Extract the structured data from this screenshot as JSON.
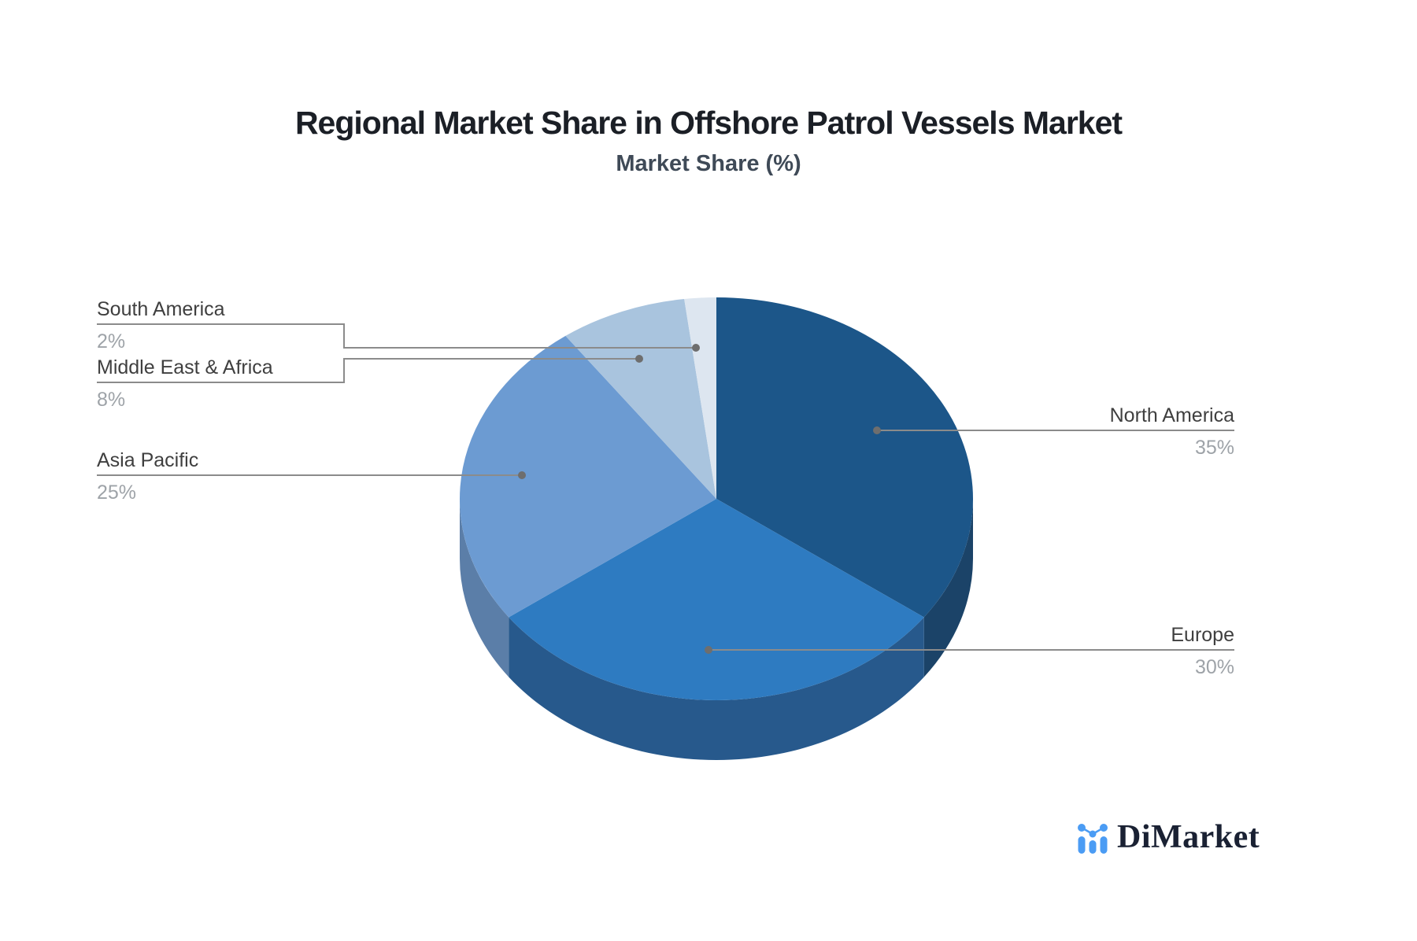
{
  "title": "Regional Market Share in Offshore Patrol Vessels Market",
  "subtitle": "Market Share (%)",
  "brand": {
    "name": "DiMarket"
  },
  "chart_data": {
    "type": "pie",
    "style": "3d",
    "title": "Regional Market Share in Offshore Patrol Vessels Market",
    "subtitle": "Market Share (%)",
    "unit": "%",
    "total": 100,
    "start_angle": "12-o-clock",
    "direction": "clockwise",
    "legend_position": "callout-labels",
    "series": [
      {
        "label": "North America",
        "value": 35,
        "display": "35%",
        "color": "#1c5689",
        "side_color": "#1b4368",
        "label_side": "right"
      },
      {
        "label": "Europe",
        "value": 30,
        "display": "30%",
        "color": "#2e7bc1",
        "side_color": "#27598c",
        "label_side": "right"
      },
      {
        "label": "Asia Pacific",
        "value": 25,
        "display": "25%",
        "color": "#6c9bd2",
        "side_color": "#5b7ea8",
        "label_side": "left"
      },
      {
        "label": "Middle East & Africa",
        "value": 8,
        "display": "8%",
        "color": "#a9c4de",
        "side_color": "#8fa9c4",
        "label_side": "left"
      },
      {
        "label": "South America",
        "value": 2,
        "display": "2%",
        "color": "#dde6f0",
        "side_color": "#bcc8d6",
        "label_side": "left"
      }
    ],
    "callout_line_color": "#8b8b8b",
    "callout_dot_color": "#6e6e6e"
  }
}
